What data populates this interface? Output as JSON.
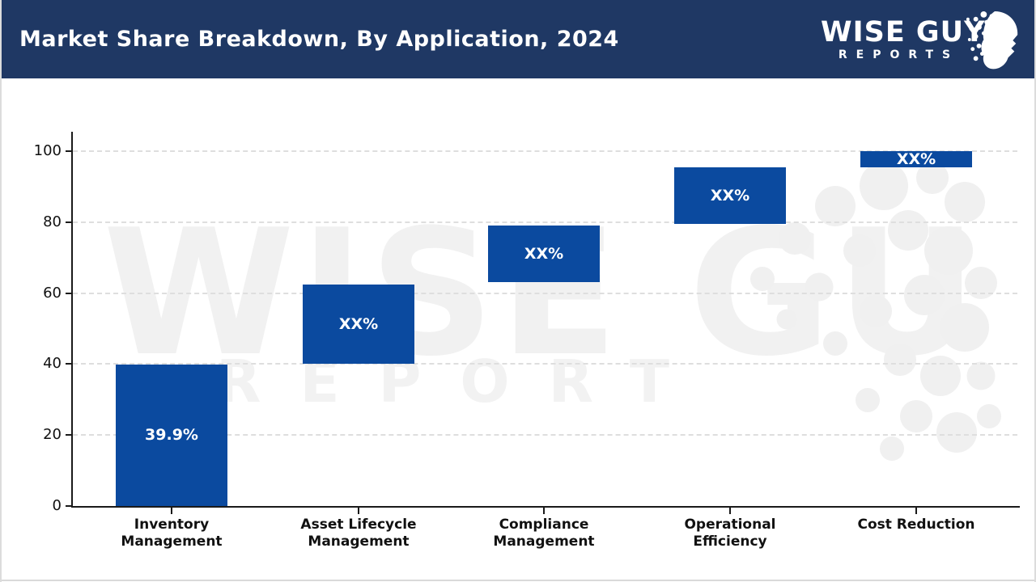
{
  "header": {
    "title": "Market Share Breakdown, By Application, 2024",
    "bg_color": "#1f3864",
    "logo": {
      "line1": "WISE GUY",
      "line2": "REPORTS"
    }
  },
  "watermark": {
    "line1": "WISE GU",
    "line2": "REPORT"
  },
  "chart_data": {
    "type": "bar",
    "subtype": "waterfall",
    "title": "Market Share Breakdown, By Application, 2024",
    "categories": [
      "Inventory Management",
      "Asset Lifecycle Management",
      "Compliance Management",
      "Operational Efficiency",
      "Cost Reduction"
    ],
    "category_display_lines": [
      "Inventory\nManagement",
      "Asset Lifecycle\nManagement",
      "Compliance\nManagement",
      "Operational\nEfficiency",
      "Cost Reduction"
    ],
    "labels": [
      "39.9%",
      "XX%",
      "XX%",
      "XX%",
      "XX%"
    ],
    "segments": [
      {
        "start": 0,
        "end": 39.9
      },
      {
        "start": 40,
        "end": 62.5
      },
      {
        "start": 63,
        "end": 79
      },
      {
        "start": 79.5,
        "end": 95.5
      },
      {
        "start": 95.5,
        "end": 100
      }
    ],
    "values": [
      39.9,
      22.5,
      16,
      16,
      4.5
    ],
    "yticks": [
      0,
      20,
      40,
      60,
      80,
      100
    ],
    "ylim": [
      0,
      105
    ],
    "xlabel": "",
    "ylabel": "",
    "legend": "none",
    "grid": "horizontal-dashed",
    "bar_color": "#0b4a9f",
    "grid_color": "#dedede",
    "axis_color": "#1a1a1a",
    "label_color": "#ffffff"
  }
}
